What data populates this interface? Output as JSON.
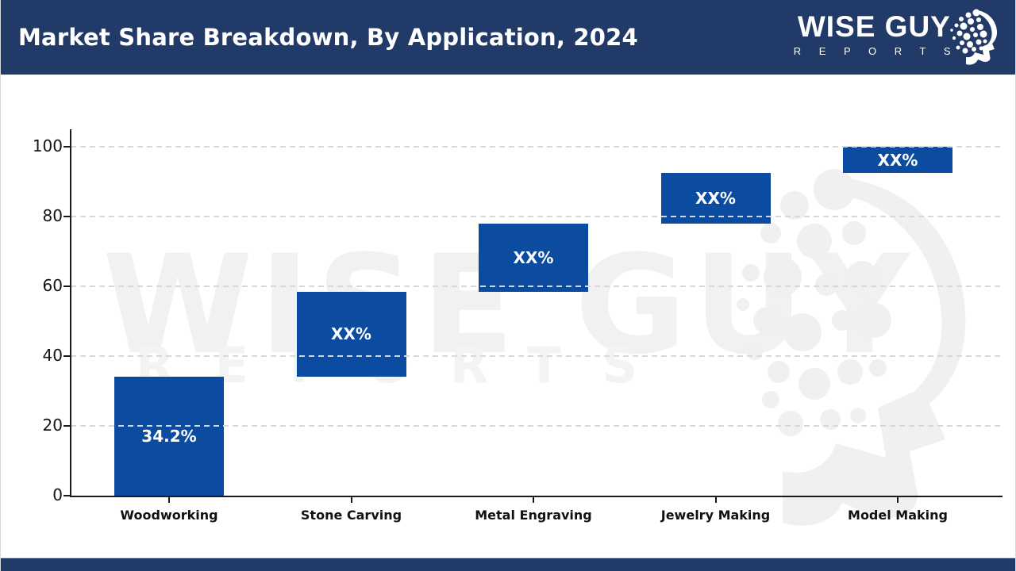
{
  "header": {
    "title": "Market Share Breakdown, By Application, 2024",
    "bg_color": "#213a67",
    "logo": {
      "line1": "WISE GUY",
      "line2": "REPORTS"
    }
  },
  "watermark": {
    "line1": "WISE GUY",
    "line2": "REPORTS"
  },
  "footer": {
    "bg_color": "#213a67"
  },
  "chart_data": {
    "type": "bar",
    "subtype": "waterfall-floating-bars",
    "title": "Market Share Breakdown, By Application, 2024",
    "xlabel": "",
    "ylabel": "",
    "categories": [
      "Woodworking",
      "Stone Carving",
      "Metal Engraving",
      "Jewelry Making",
      "Model Making"
    ],
    "segments": [
      {
        "category": "Woodworking",
        "start": 0,
        "end": 34.2,
        "label": "34.2%"
      },
      {
        "category": "Stone Carving",
        "start": 34.2,
        "end": 58.5,
        "label": "XX%"
      },
      {
        "category": "Metal Engraving",
        "start": 58.5,
        "end": 78.0,
        "label": "XX%"
      },
      {
        "category": "Jewelry Making",
        "start": 78.0,
        "end": 92.5,
        "label": "XX%"
      },
      {
        "category": "Model Making",
        "start": 92.5,
        "end": 100.0,
        "label": "XX%"
      }
    ],
    "y_ticks": [
      0,
      20,
      40,
      60,
      80,
      100
    ],
    "ylim": [
      0,
      105
    ],
    "bar_color": "#0b4ba0",
    "grid": true,
    "grid_style": "dashed",
    "legend": "none"
  }
}
